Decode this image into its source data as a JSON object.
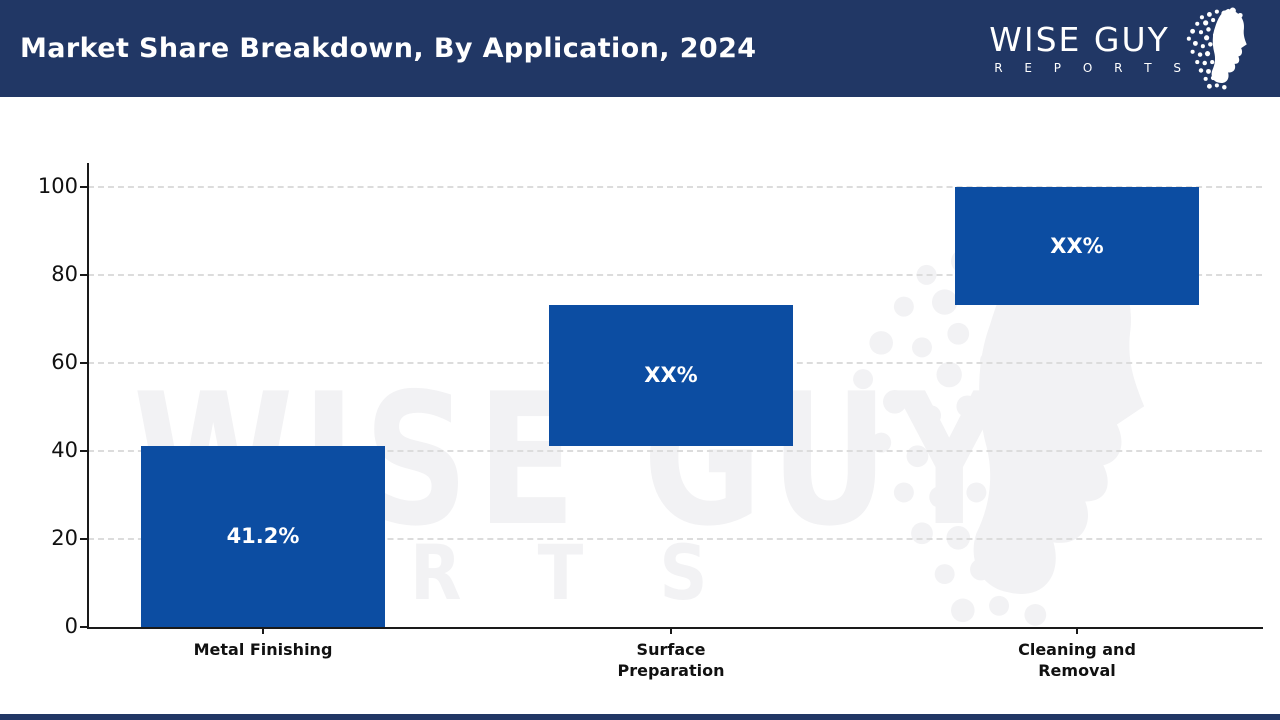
{
  "header": {
    "title": "Market Share Breakdown, By Application, 2024",
    "logo": {
      "brand_line1": "WISE GUY",
      "brand_line2": "R E P O R T S"
    }
  },
  "watermark": {
    "text_line1": "WISE GUY",
    "text_line2": "P O R T S"
  },
  "chart_data": {
    "type": "bar",
    "subtype": "floating-segment-waterfall",
    "title": "Market Share Breakdown, By Application, 2024",
    "categories": [
      "Metal Finishing",
      "Surface Preparation",
      "Cleaning and Removal"
    ],
    "category_lines": [
      [
        "Metal Finishing"
      ],
      [
        "Surface",
        "Preparation"
      ],
      [
        "Cleaning and",
        "Removal"
      ]
    ],
    "segments": [
      {
        "category": "Metal Finishing",
        "start": 0,
        "end": 41.2,
        "label": "41.2%"
      },
      {
        "category": "Surface Preparation",
        "start": 41.2,
        "end": 73.2,
        "label": "XX%"
      },
      {
        "category": "Cleaning and Removal",
        "start": 73.2,
        "end": 100,
        "label": "XX%"
      }
    ],
    "ylim": [
      0,
      100
    ],
    "yticks": [
      0,
      20,
      40,
      60,
      80,
      100
    ],
    "xlabel": "",
    "ylabel": "",
    "grid": "horizontal-dashed",
    "legend": "none",
    "bar_color": "#0C4DA2",
    "bar_label_color": "#FFFFFF"
  },
  "colors": {
    "header_bg": "#213765",
    "footer_bg": "#213765",
    "bar": "#0C4DA2",
    "gridline": "#DCDCDC",
    "axis": "#1A1A1A",
    "watermark": "#F2F2F4",
    "title_text": "#FFFFFF"
  }
}
